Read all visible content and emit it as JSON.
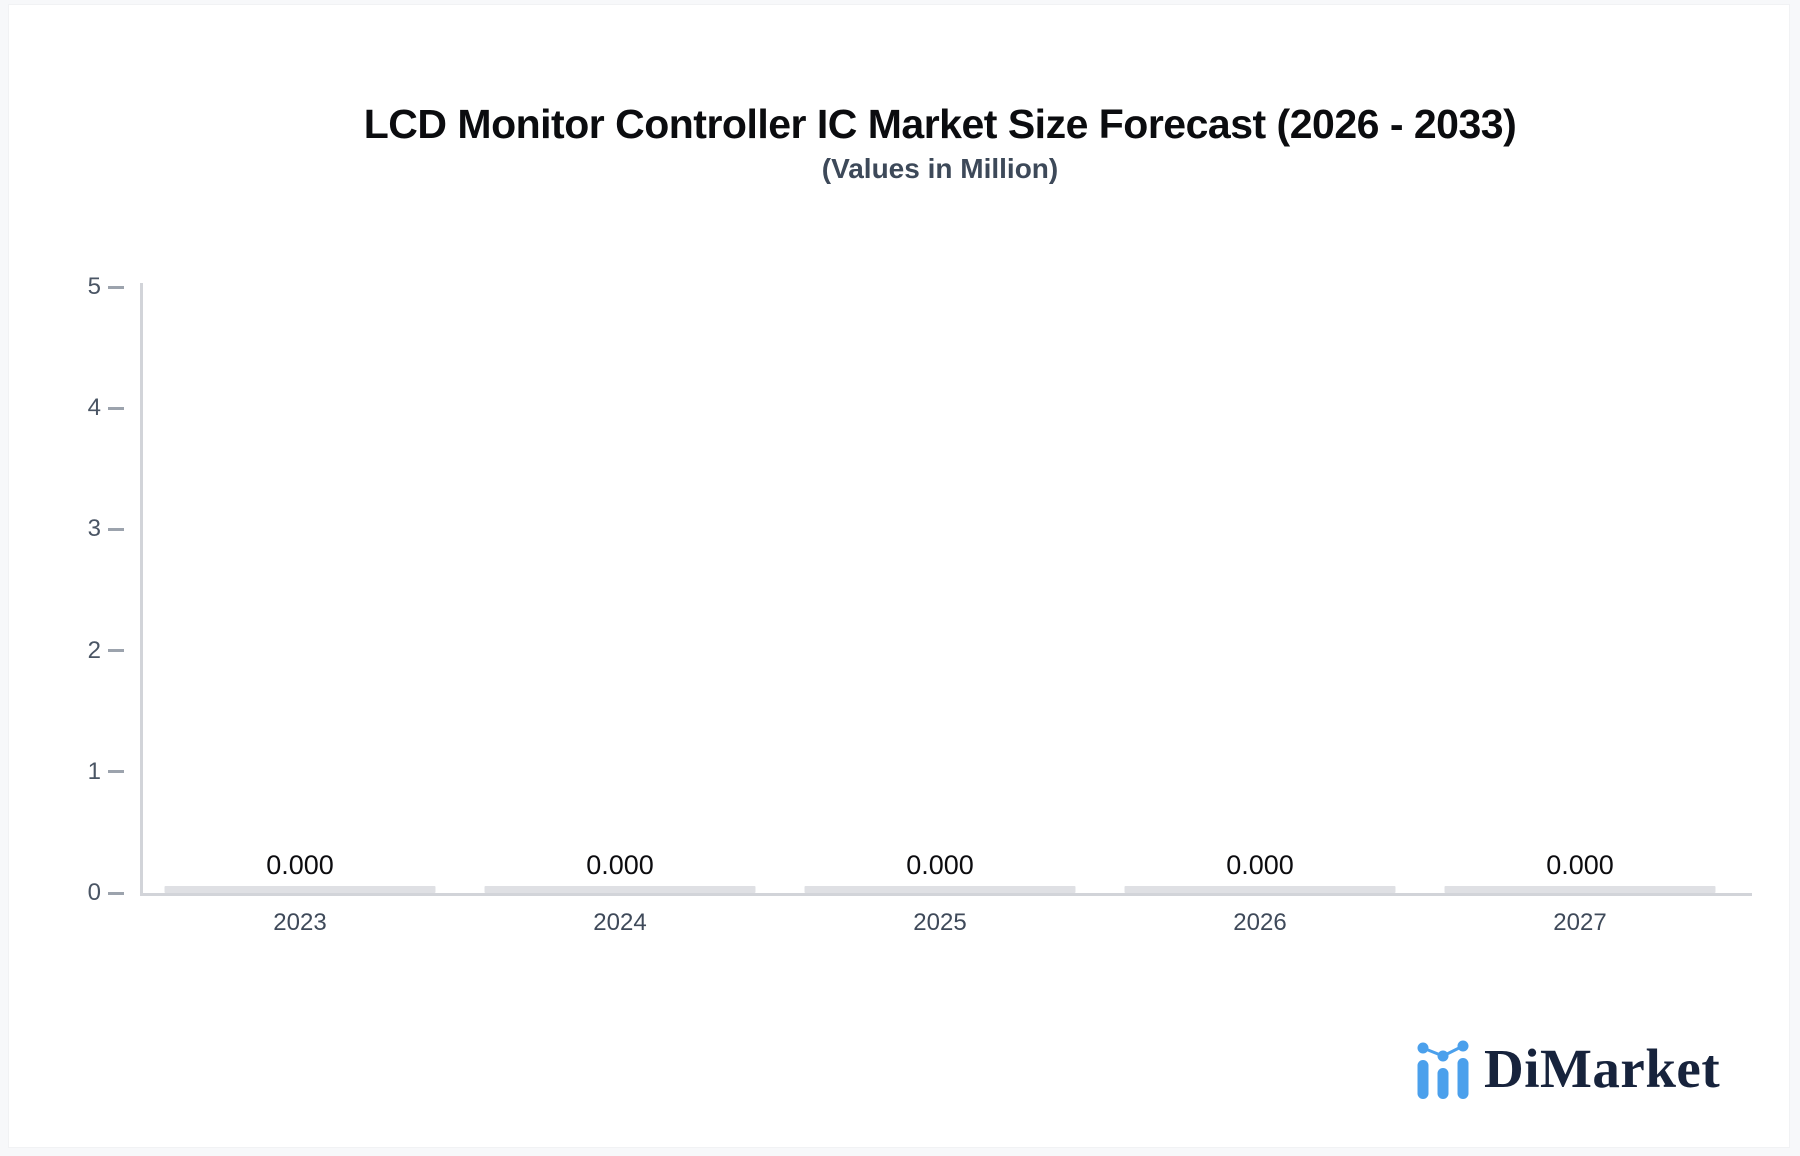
{
  "header": {
    "title": "LCD Monitor Controller IC Market Size Forecast (2026 - 2033)",
    "subtitle": "(Values in Million)"
  },
  "chart_data": {
    "type": "bar",
    "title": "LCD Monitor Controller IC Market Size Forecast (2026 - 2033)",
    "subtitle": "(Values in Million)",
    "categories": [
      "2023",
      "2024",
      "2025",
      "2026",
      "2027"
    ],
    "values": [
      0,
      0,
      0,
      0,
      0
    ],
    "value_labels": [
      "0.000",
      "0.000",
      "0.000",
      "0.000",
      "0.000"
    ],
    "xlabel": "",
    "ylabel": "",
    "ylim": [
      0,
      5
    ],
    "yticks": [
      0,
      1,
      2,
      3,
      4,
      5
    ],
    "grid": false,
    "legend": false,
    "colors": {
      "bar": "#dfe0e4",
      "axis_line": "#d2d4d9",
      "tick_dash": "#9ca3ad",
      "tick_label": "#4a5564",
      "value_label": "#0c0c0f",
      "category_label": "#3f4a5a"
    }
  },
  "branding": {
    "logo_text": "DiMarket",
    "logo_text_color": "#17233c",
    "logo_icon": "bar-chart-sparkline-icon",
    "logo_icon_color": "#4ba0ec"
  }
}
